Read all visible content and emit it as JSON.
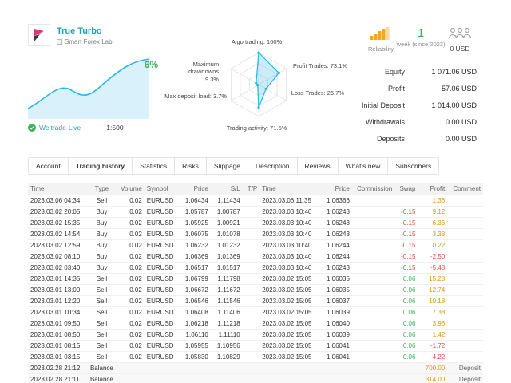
{
  "header": {
    "title": "True Turbo",
    "author": "Smart Forex Lab.",
    "growth_percent": "6%",
    "broker": "Weltrade-Live",
    "leverage": "1:500"
  },
  "radar": {
    "labels": {
      "algo_trading": "Algo trading: 100%",
      "max_drawdowns_line1": "Maximum drawdowns",
      "max_drawdowns_line2": "9.3%",
      "profit_trades": "Profit Trades: 73.1%",
      "max_deposit_load": "Max deposit load: 3.7%",
      "loss_trades": "Loss Trades: 26.7%",
      "trading_activity": "Trading activity: 71.5%"
    },
    "values": {
      "algo_trading": 100,
      "profit_trades": 73.1,
      "loss_trades": 26.7,
      "trading_activity": 71.5,
      "max_deposit_load": 3.7,
      "max_drawdowns": 9.3
    },
    "accent_color": "#2ab6e8"
  },
  "summary": {
    "reliability_label": "Reliability",
    "age_value": "1",
    "age_label": "week (since 2023)",
    "funds_value": "0 USD",
    "bar_color": "#56c7f3",
    "stats": [
      {
        "label": "Equity",
        "value": "1 071.06 USD",
        "bar_percent": 100
      },
      {
        "label": "Profit",
        "value": "57.06 USD",
        "bar_percent": 0
      },
      {
        "label": "Initial Deposit",
        "value": "1 014.00 USD",
        "bar_percent": 96
      },
      {
        "label": "Withdrawals",
        "value": "0.00 USD",
        "bar_percent": 0
      },
      {
        "label": "Deposits",
        "value": "0.00 USD",
        "bar_percent": 0
      }
    ]
  },
  "tabs": [
    {
      "label": "Account",
      "active": false
    },
    {
      "label": "Trading history",
      "active": true
    },
    {
      "label": "Statistics",
      "active": false
    },
    {
      "label": "Risks",
      "active": false
    },
    {
      "label": "Slippage",
      "active": false
    },
    {
      "label": "Description",
      "active": false
    },
    {
      "label": "Reviews",
      "active": false
    },
    {
      "label": "What's new",
      "active": false
    },
    {
      "label": "Subscribers",
      "active": false
    }
  ],
  "table": {
    "headers": [
      "Time",
      "Type",
      "Volume",
      "Symbol",
      "Price",
      "S/L",
      "T/P",
      "Time",
      "Price",
      "Commission",
      "Swap",
      "Profit",
      "Comment"
    ],
    "rows": [
      [
        "2023.03.06 04:34",
        "Sell",
        "0.02",
        "EURUSD",
        "1.06434",
        "1.11434",
        "",
        "2023.03.06 11:35",
        "1.06366",
        "",
        "",
        "1.36",
        ""
      ],
      [
        "2023.03.02 20:05",
        "Buy",
        "0.02",
        "EURUSD",
        "1.05787",
        "1.00787",
        "",
        "2023.03.03 10:40",
        "1.06243",
        "",
        "-0.15",
        "9.12",
        ""
      ],
      [
        "2023.03.02 15:35",
        "Buy",
        "0.02",
        "EURUSD",
        "1.05925",
        "1.00921",
        "",
        "2023.03.03 10:40",
        "1.06243",
        "",
        "-0.15",
        "6.36",
        ""
      ],
      [
        "2023.03.02 14:54",
        "Buy",
        "0.02",
        "EURUSD",
        "1.06075",
        "1.01078",
        "",
        "2023.03.03 10:40",
        "1.06243",
        "",
        "-0.15",
        "3.38",
        ""
      ],
      [
        "2023.03.02 12:59",
        "Buy",
        "0.02",
        "EURUSD",
        "1.06232",
        "1.01232",
        "",
        "2023.03.03 10:40",
        "1.06244",
        "",
        "-0.15",
        "0.22",
        ""
      ],
      [
        "2023.03.02 08:10",
        "Buy",
        "0.02",
        "EURUSD",
        "1.06369",
        "1.01369",
        "",
        "2023.03.03 10:40",
        "1.06244",
        "",
        "-0.15",
        "-2.50",
        ""
      ],
      [
        "2023.03.02 03:40",
        "Buy",
        "0.02",
        "EURUSD",
        "1.06517",
        "1.01517",
        "",
        "2023.03.03 10:40",
        "1.06243",
        "",
        "-0.15",
        "-5.48",
        ""
      ],
      [
        "2023.03.01 14:35",
        "Sell",
        "0.02",
        "EURUSD",
        "1.06799",
        "1.11798",
        "",
        "2023.03.02 15:05",
        "1.06035",
        "",
        "0.06",
        "15.28",
        ""
      ],
      [
        "2023.03.01 13:00",
        "Sell",
        "0.02",
        "EURUSD",
        "1.06672",
        "1.11672",
        "",
        "2023.03.02 15:05",
        "1.06035",
        "",
        "0.06",
        "12.74",
        ""
      ],
      [
        "2023.03.01 12:20",
        "Sell",
        "0.02",
        "EURUSD",
        "1.06546",
        "1.11546",
        "",
        "2023.03.02 15:05",
        "1.06037",
        "",
        "0.06",
        "10.18",
        ""
      ],
      [
        "2023.03.01 10:34",
        "Sell",
        "0.02",
        "EURUSD",
        "1.06408",
        "1.11406",
        "",
        "2023.03.02 15:05",
        "1.06039",
        "",
        "0.06",
        "7.38",
        ""
      ],
      [
        "2023.03.01 09:50",
        "Sell",
        "0.02",
        "EURUSD",
        "1.06218",
        "1.11218",
        "",
        "2023.03.02 15:05",
        "1.06040",
        "",
        "0.06",
        "3.96",
        ""
      ],
      [
        "2023.03.01 08:50",
        "Sell",
        "0.02",
        "EURUSD",
        "1.06110",
        "1.11110",
        "",
        "2023.03.02 15:05",
        "1.06039",
        "",
        "0.06",
        "1.42",
        ""
      ],
      [
        "2023.03.01 08:15",
        "Sell",
        "0.02",
        "EURUSD",
        "1.05955",
        "1.10956",
        "",
        "2023.03.02 15:05",
        "1.06041",
        "",
        "0.06",
        "-1.72",
        ""
      ],
      [
        "2023.03.01 03:15",
        "Sell",
        "0.02",
        "EURUSD",
        "1.05830",
        "1.10829",
        "",
        "2023.03.02 15:05",
        "1.06041",
        "",
        "0.06",
        "-4.22",
        ""
      ],
      [
        "2023.02.28 21:12",
        "Balance",
        "",
        "",
        "",
        "",
        "",
        "",
        "",
        "",
        "",
        "700.00",
        "Deposit"
      ],
      [
        "2023.02.28 21:11",
        "Balance",
        "",
        "",
        "",
        "",
        "",
        "",
        "",
        "",
        "",
        "314.00",
        "Deposit"
      ]
    ]
  }
}
